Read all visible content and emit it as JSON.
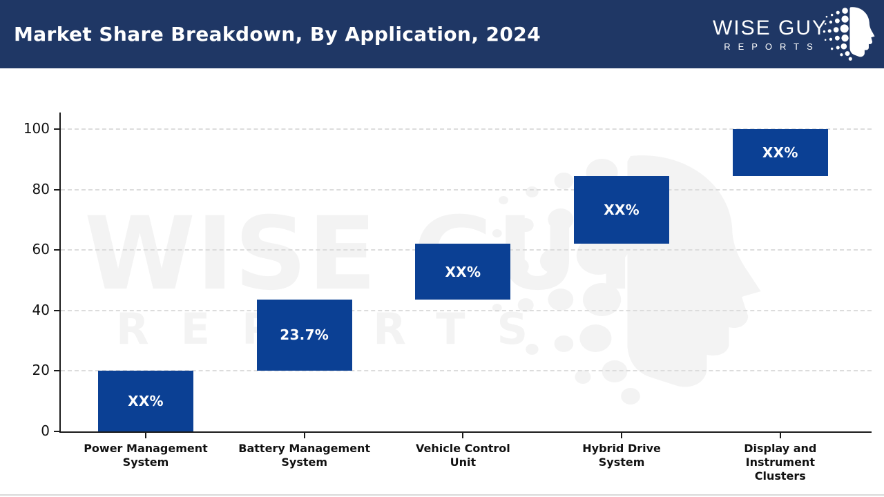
{
  "header": {
    "title": "Market Share Breakdown, By Application, 2024",
    "logo": {
      "line1": "WISE GUY",
      "line2": "REPORTS"
    }
  },
  "watermark": {
    "line1": "WISE GUY",
    "line2": "REPORTS"
  },
  "colors": {
    "header_bg": "#1f3765",
    "bar": "#0b4094",
    "grid": "#dcdcdc",
    "axis": "#1a1a1a",
    "watermark": "#f3f3f3",
    "title_text": "#ffffff",
    "bar_label_text": "#ffffff"
  },
  "chart_data": {
    "type": "bar",
    "subtype": "waterfall",
    "title": "Market Share Breakdown, By Application, 2024",
    "xlabel": "",
    "ylabel": "",
    "ylim": [
      0,
      105
    ],
    "yticks": [
      0,
      20,
      40,
      60,
      80,
      100
    ],
    "grid": "horizontal-dashed",
    "legend": "none",
    "bar_color": "#0b4094",
    "categories": [
      {
        "name": "Power Management System",
        "lines": [
          "Power Management",
          "System"
        ]
      },
      {
        "name": "Battery Management System",
        "lines": [
          "Battery Management",
          "System"
        ]
      },
      {
        "name": "Vehicle Control Unit",
        "lines": [
          "Vehicle Control",
          "Unit"
        ]
      },
      {
        "name": "Hybrid Drive System",
        "lines": [
          "Hybrid Drive",
          "System"
        ]
      },
      {
        "name": "Display and Instrument Clusters",
        "lines": [
          "Display and",
          "Instrument",
          "Clusters"
        ]
      }
    ],
    "series": [
      {
        "name": "Market Share",
        "segments": [
          {
            "category": "Power Management System",
            "start": 0,
            "end": 20,
            "label": "XX%"
          },
          {
            "category": "Battery Management System",
            "start": 20,
            "end": 43.7,
            "label": "23.7%"
          },
          {
            "category": "Vehicle Control Unit",
            "start": 43.7,
            "end": 62,
            "label": "XX%"
          },
          {
            "category": "Hybrid Drive System",
            "start": 62,
            "end": 84.5,
            "label": "XX%"
          },
          {
            "category": "Display and Instrument Clusters",
            "start": 84.5,
            "end": 100,
            "label": "XX%"
          }
        ]
      }
    ]
  }
}
